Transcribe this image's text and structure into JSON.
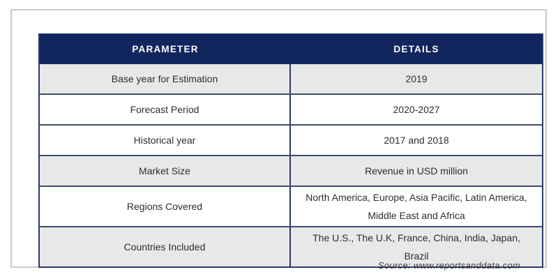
{
  "chart_data": {
    "type": "table",
    "columns": [
      "PARAMETER",
      "DETAILS"
    ],
    "rows": [
      {
        "parameter": "Base year for Estimation",
        "details": "2019"
      },
      {
        "parameter": "Forecast Period",
        "details": "2020-2027"
      },
      {
        "parameter": "Historical year",
        "details": "2017 and 2018"
      },
      {
        "parameter": "Market Size",
        "details": "Revenue in USD million"
      },
      {
        "parameter": "Regions Covered",
        "details": "North America, Europe, Asia Pacific, Latin America, Middle East and Africa"
      },
      {
        "parameter": "Countries Included",
        "details": "The U.S., The U.K, France, China, India, Japan, Brazil"
      }
    ],
    "source": "Source: www.reportsanddata.com",
    "layout_hints": {
      "header_position": "top",
      "alternating_row_shading": [
        true,
        false,
        false,
        true,
        false,
        true
      ]
    }
  },
  "colors": {
    "header_bg": "#12265e",
    "header_text": "#ffffff",
    "alt_row_bg": "#e8e8e8",
    "row_bg": "#ffffff",
    "cell_text": "#2e2e2e",
    "table_border": "#2c3a67",
    "row_divider": "#3e4a6d",
    "frame_border": "#c9c9c9",
    "source_text": "#3a3a3a"
  }
}
